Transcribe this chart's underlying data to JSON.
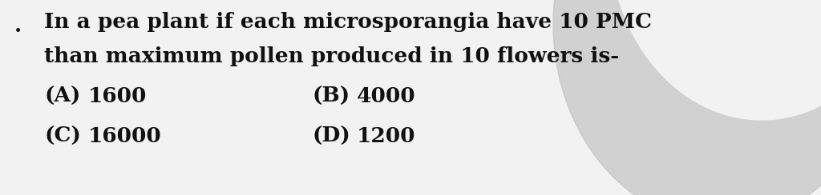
{
  "background_color": "#f2f2f2",
  "bullet": ".",
  "question_line1": "In a pea plant if each microsporangia have 10 PMC",
  "question_line2": "than maximum pollen produced in 10 flowers is-",
  "option_A_label": "(A)",
  "option_A_value": "1600",
  "option_B_label": "(B)",
  "option_B_value": "4000",
  "option_C_label": "(C)",
  "option_C_value": "16000",
  "option_D_label": "(D)",
  "option_D_value": "1200",
  "text_color": "#111111",
  "font_size_question": 19,
  "font_size_options": 19,
  "font_family": "DejaVu Serif",
  "arc_color": "#bbbbbb",
  "arc_alpha": 0.6
}
